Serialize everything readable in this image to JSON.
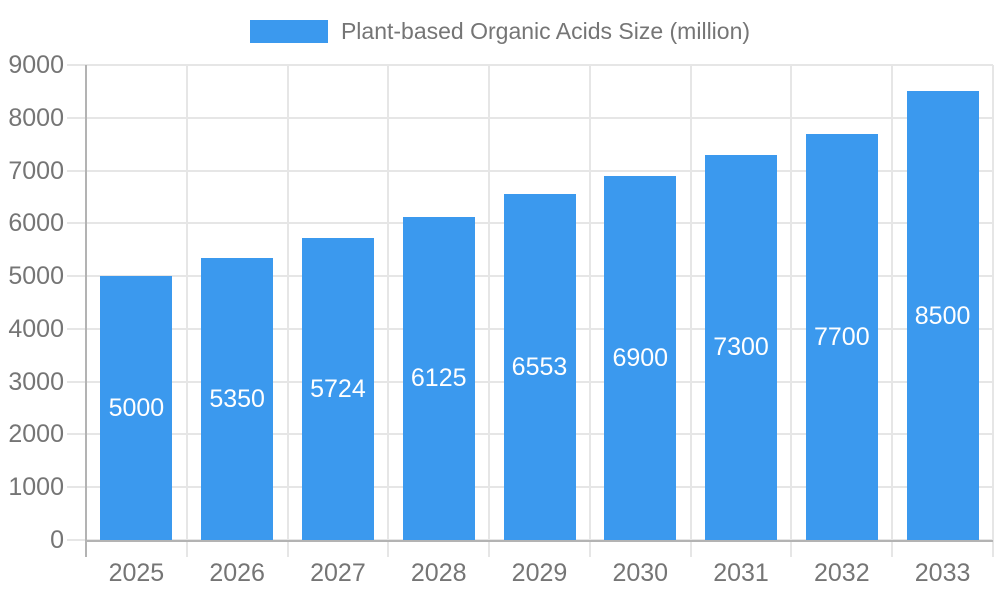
{
  "chart_data": {
    "type": "bar",
    "title": "",
    "legend_label": "Plant-based Organic Acids Size (million)",
    "legend_position": "top",
    "categories": [
      "2025",
      "2026",
      "2027",
      "2028",
      "2029",
      "2030",
      "2031",
      "2032",
      "2033"
    ],
    "values": [
      5000,
      5350,
      5724,
      6125,
      6553,
      6900,
      7300,
      7700,
      8500
    ],
    "bar_labels": [
      "5000",
      "5350",
      "5724",
      "6125",
      "6553",
      "6900",
      "7300",
      "7700",
      "8500"
    ],
    "bar_label_position": "center-inside",
    "xlabel": "",
    "ylabel": "",
    "ylim": [
      0,
      9000
    ],
    "ytick_step": 1000,
    "yticks": [
      "0",
      "1000",
      "2000",
      "3000",
      "4000",
      "5000",
      "6000",
      "7000",
      "8000",
      "9000"
    ],
    "grid": true
  },
  "colors": {
    "bar": "#3b99ee",
    "axis_text": "#757575",
    "grid_line": "#e6e6e6",
    "axis_line": "#b3b3b3",
    "bar_label_text": "#ffffff",
    "background": "#ffffff"
  }
}
